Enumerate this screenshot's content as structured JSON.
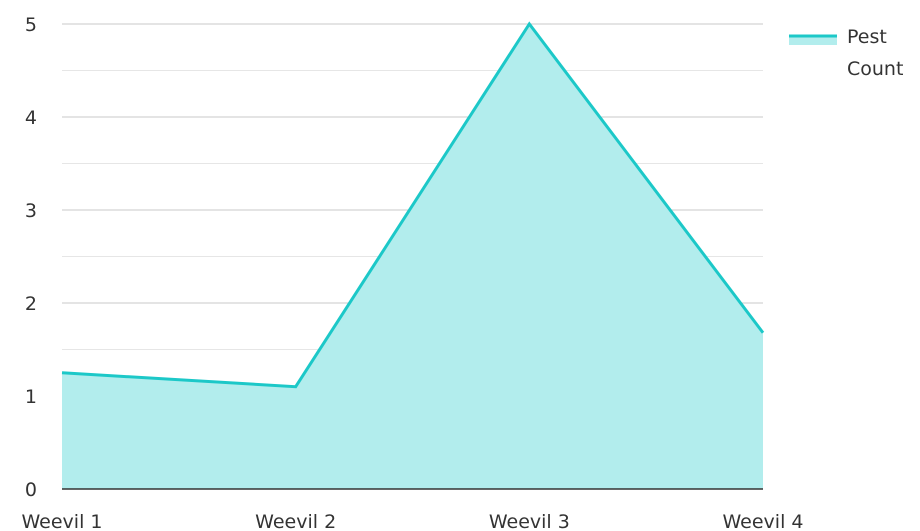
{
  "chart_data": {
    "type": "area",
    "categories": [
      "Weevil 1",
      "Weevil 2",
      "Weevil 3",
      "Weevil 4"
    ],
    "series": [
      {
        "name": "Pest Count",
        "values": [
          1.25,
          1.1,
          5,
          1.68
        ],
        "color": "#1cc8c8",
        "fill": "#b2eded"
      }
    ],
    "ylim": [
      0,
      5
    ],
    "yticks": [
      "0",
      "1",
      "2",
      "3",
      "4",
      "5"
    ],
    "grid": true,
    "legend": {
      "position": "top-right",
      "lines": [
        "Pest",
        "Count"
      ]
    },
    "colors": {
      "gridline": "#c9c9c9",
      "minor_gridline": "#e6e6e6",
      "axis": "#333333"
    }
  }
}
